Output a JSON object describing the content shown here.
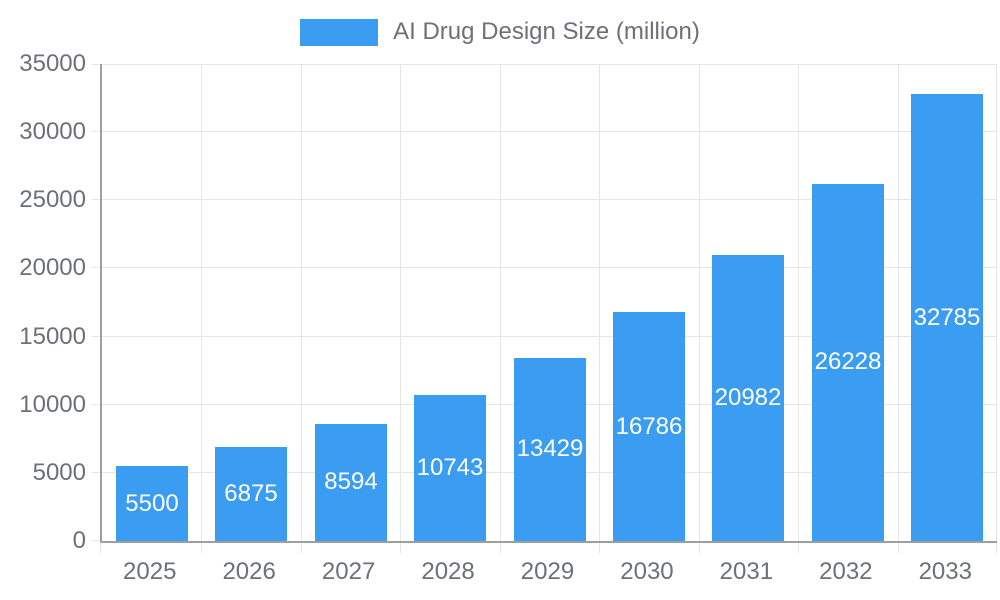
{
  "chart_data": {
    "type": "bar",
    "title": "AI Drug Design Size (million)",
    "legend": {
      "label": "AI Drug Design Size (million)",
      "position": "top-center"
    },
    "categories": [
      "2025",
      "2026",
      "2027",
      "2028",
      "2029",
      "2030",
      "2031",
      "2032",
      "2033"
    ],
    "values": [
      5500,
      6875,
      8594,
      10743,
      13429,
      16786,
      20982,
      26228,
      32785
    ],
    "value_labels_shown": true,
    "value_label_position": "inside-center",
    "xlabel": "",
    "ylabel": "",
    "ylim": [
      0,
      35000
    ],
    "ytick_step": 5000,
    "ytick_labels": [
      "0",
      "5000",
      "10000",
      "15000",
      "20000",
      "25000",
      "30000",
      "35000"
    ],
    "grid": true
  },
  "colors": {
    "bar": "#3b9df2",
    "grid": "#e6e6e6",
    "axis": "#9e9e9e",
    "label": "#6e7079",
    "value_label": "#ffffff",
    "background": "#ffffff"
  }
}
